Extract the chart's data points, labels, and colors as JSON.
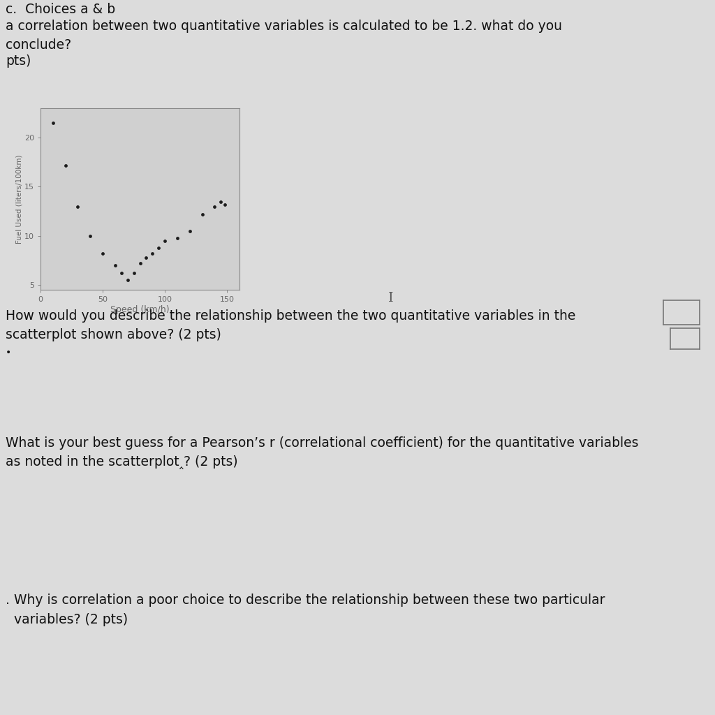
{
  "scatter_x": [
    10,
    20,
    30,
    40,
    50,
    60,
    65,
    70,
    75,
    80,
    85,
    90,
    95,
    100,
    110,
    120,
    130,
    140,
    145,
    148
  ],
  "scatter_y": [
    21.5,
    17.2,
    13.0,
    10.0,
    8.2,
    7.0,
    6.2,
    5.5,
    6.2,
    7.2,
    7.8,
    8.2,
    8.8,
    9.5,
    9.8,
    10.5,
    12.2,
    13.0,
    13.5,
    13.2
  ],
  "xlabel": "Speed (km/h)",
  "ylabel": "Fuel Used (liters/100km)",
  "xlim": [
    0,
    160
  ],
  "ylim": [
    4.5,
    23
  ],
  "yticks": [
    5,
    10,
    15,
    20
  ],
  "xticks": [
    0,
    50,
    100,
    150
  ],
  "dot_color": "#1c1c1c",
  "dot_size": 12,
  "bg_color": "#dcdcdc",
  "plot_bg_color": "#d0d0d0",
  "top_text1": "a correlation between two quantitative variables is calculated to be 1.2. what do you",
  "top_text2": "conclude?",
  "top_text3": "pts)",
  "sec2_text1": "How would you describe the relationship between the two quantitative variables in the",
  "sec2_text2": "scatterplot shown above? (2 pts)",
  "sec3_text1": "What is your best guess for a Pearson’s r (correlational coefficient) for the quantitative variables",
  "sec3_text2": "as noted in the scatterplot‸? (2 pts)",
  "sec4_text1": "Why is correlation a poor choice to describe the relationship between these two particular",
  "sec4_text2": "variables? (2 pts)",
  "header_text": "c.  Choices a & b",
  "text_color": "#111111",
  "divider_color": "#aaaaaa",
  "label_color": "#666666",
  "fontsize_main": 13.5,
  "fontsize_small": 9
}
